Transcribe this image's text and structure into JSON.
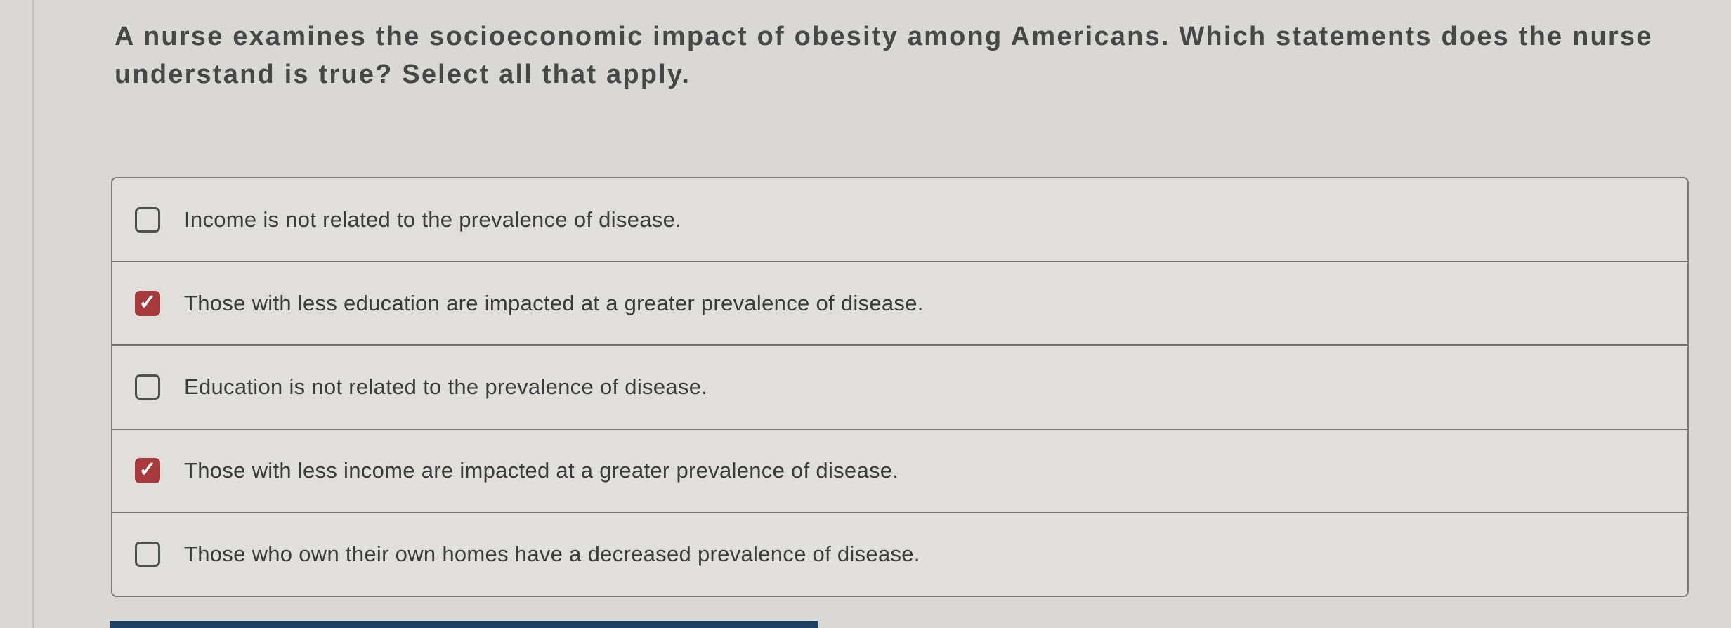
{
  "question": {
    "text": "A nurse examines the socioeconomic impact of obesity among Americans. Which statements does the nurse understand is true? Select all that apply."
  },
  "options": [
    {
      "label": "Income is not related to the prevalence of disease.",
      "checked": false
    },
    {
      "label": "Those with less education are impacted at a greater prevalence of disease.",
      "checked": true
    },
    {
      "label": "Education is not related to the prevalence of disease.",
      "checked": false
    },
    {
      "label": "Those with less income are impacted at a greater prevalence of disease.",
      "checked": true
    },
    {
      "label": "Those who own their own homes have a decreased prevalence of disease.",
      "checked": false
    }
  ],
  "icons": {
    "check": "✓"
  },
  "colors": {
    "checkbox_checked": "#a63a3c",
    "page_background": "#d9d8d5"
  }
}
